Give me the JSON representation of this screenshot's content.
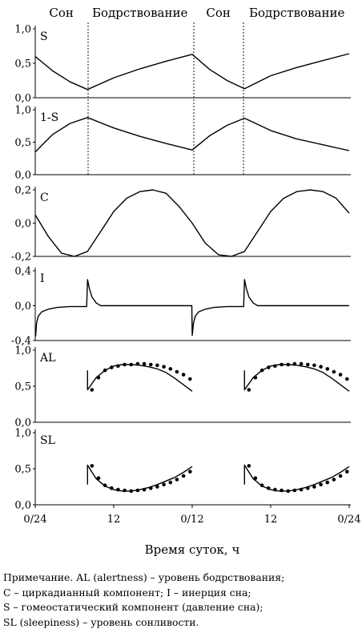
{
  "chart_data": {
    "type": "line",
    "xlabel": "Время суток, ч",
    "x_ticks": [
      "0/24",
      "12",
      "0/12",
      "12",
      "0/24"
    ],
    "phases": [
      {
        "label": "Сон",
        "from": 0,
        "to": 12
      },
      {
        "label": "Бодрствование",
        "from": 12,
        "to": 36
      },
      {
        "label": "Сон",
        "from": 36,
        "to": 48
      },
      {
        "label": "Бодрствование",
        "from": 48,
        "to": 72
      }
    ],
    "xlim": [
      0,
      72
    ],
    "panels": [
      {
        "label": "S",
        "ylim": [
          0,
          1
        ],
        "yticks": [
          "0,0",
          "0,5",
          "1,0"
        ],
        "series": [
          {
            "x": [
              0,
              4,
              8,
              12,
              18,
              24,
              30,
              36,
              40,
              44,
              48,
              54,
              60,
              66,
              72
            ],
            "y": [
              0.6,
              0.39,
              0.23,
              0.12,
              0.29,
              0.42,
              0.53,
              0.63,
              0.41,
              0.25,
              0.13,
              0.32,
              0.44,
              0.54,
              0.64
            ]
          }
        ]
      },
      {
        "label": "1-S",
        "ylim": [
          0,
          1
        ],
        "yticks": [
          "0,0",
          "0,5",
          "1,0"
        ],
        "series": [
          {
            "x": [
              0,
              4,
              8,
              12,
              18,
              24,
              30,
              36,
              40,
              44,
              48,
              54,
              60,
              66,
              72
            ],
            "y": [
              0.35,
              0.62,
              0.79,
              0.88,
              0.72,
              0.59,
              0.48,
              0.38,
              0.6,
              0.76,
              0.87,
              0.68,
              0.55,
              0.46,
              0.37
            ]
          }
        ]
      },
      {
        "label": "C",
        "ylim": [
          -0.2,
          0.2
        ],
        "yticks": [
          "-0,2",
          "0,0",
          "0,2"
        ],
        "series": [
          {
            "x": [
              0,
              3,
              6,
              9,
              12,
              15,
              18,
              21,
              24,
              27,
              30,
              33,
              36,
              39,
              42,
              45,
              48,
              51,
              54,
              57,
              60,
              63,
              66,
              69,
              72
            ],
            "y": [
              0.05,
              -0.08,
              -0.18,
              -0.2,
              -0.17,
              -0.05,
              0.07,
              0.15,
              0.19,
              0.2,
              0.18,
              0.1,
              0.0,
              -0.12,
              -0.19,
              -0.2,
              -0.17,
              -0.05,
              0.07,
              0.15,
              0.19,
              0.2,
              0.19,
              0.15,
              0.06
            ]
          }
        ]
      },
      {
        "label": "I",
        "ylim": [
          -0.4,
          0.4
        ],
        "yticks": [
          "-0,4",
          "0,0",
          "0,4"
        ],
        "series": [
          {
            "x": [
              0.1,
              0.3,
              0.7,
              1.5,
              3,
              5,
              8,
              11.8,
              12,
              12.4,
              13,
              14,
              15,
              18,
              24,
              30,
              35.9,
              36,
              36.3,
              36.7,
              37.5,
              39,
              41,
              44,
              47.8,
              48,
              48.4,
              49,
              50,
              51,
              54,
              60,
              66,
              72
            ],
            "y": [
              -0.35,
              -0.2,
              -0.12,
              -0.07,
              -0.04,
              -0.02,
              -0.01,
              -0.01,
              0.3,
              0.2,
              0.1,
              0.03,
              0.0,
              0.0,
              0.0,
              0.0,
              0.0,
              -0.34,
              -0.2,
              -0.12,
              -0.07,
              -0.04,
              -0.02,
              -0.01,
              -0.01,
              0.3,
              0.2,
              0.1,
              0.03,
              0.0,
              0.0,
              0.0,
              0.0,
              0.0
            ]
          }
        ]
      },
      {
        "label": "AL",
        "ylim": [
          0,
          1
        ],
        "yticks": [
          "0,0",
          "0,5",
          "1,0"
        ],
        "series": [
          {
            "name": "",
            "x": [
              12,
              12,
              14,
              16,
              18,
              20,
              22,
              24,
              26,
              28,
              30,
              32,
              34,
              36
            ],
            "y": [
              0.72,
              0.45,
              0.62,
              0.72,
              0.78,
              0.8,
              0.8,
              0.79,
              0.77,
              0.74,
              0.69,
              0.61,
              0.52,
              0.43
            ]
          },
          {
            "name": "",
            "x": [
              48,
              48,
              50,
              52,
              54,
              56,
              58,
              60,
              62,
              64,
              66,
              68,
              70,
              72
            ],
            "y": [
              0.72,
              0.45,
              0.62,
              0.72,
              0.78,
              0.8,
              0.8,
              0.79,
              0.77,
              0.74,
              0.69,
              0.61,
              0.52,
              0.43
            ]
          }
        ],
        "points": {
          "x": [
            13,
            14.5,
            16,
            17.5,
            19,
            20.5,
            22,
            23.5,
            25,
            26.5,
            28,
            29.5,
            31,
            32.5,
            34,
            35.5,
            49,
            50.5,
            52,
            53.5,
            55,
            56.5,
            58,
            59.5,
            61,
            62.5,
            64,
            65.5,
            67,
            68.5,
            70,
            71.5
          ],
          "y": [
            0.45,
            0.62,
            0.72,
            0.76,
            0.78,
            0.8,
            0.8,
            0.81,
            0.81,
            0.8,
            0.79,
            0.77,
            0.74,
            0.7,
            0.66,
            0.6,
            0.45,
            0.62,
            0.72,
            0.76,
            0.78,
            0.8,
            0.8,
            0.81,
            0.81,
            0.8,
            0.79,
            0.77,
            0.74,
            0.7,
            0.66,
            0.6
          ]
        }
      },
      {
        "label": "SL",
        "ylim": [
          0,
          1
        ],
        "yticks": [
          "0,0",
          "0,5",
          "1,0"
        ],
        "series": [
          {
            "name": "",
            "x": [
              12,
              12,
              14,
              16,
              18,
              20,
              22,
              24,
              26,
              28,
              30,
              32,
              34,
              36
            ],
            "y": [
              0.28,
              0.55,
              0.36,
              0.26,
              0.21,
              0.19,
              0.19,
              0.21,
              0.24,
              0.28,
              0.33,
              0.38,
              0.45,
              0.53
            ]
          },
          {
            "name": "",
            "x": [
              48,
              48,
              50,
              52,
              54,
              56,
              58,
              60,
              62,
              64,
              66,
              68,
              70,
              72
            ],
            "y": [
              0.28,
              0.55,
              0.36,
              0.26,
              0.21,
              0.19,
              0.19,
              0.21,
              0.24,
              0.28,
              0.33,
              0.38,
              0.45,
              0.53
            ]
          }
        ],
        "points": {
          "x": [
            13,
            14.5,
            16,
            17.5,
            19,
            20.5,
            22,
            23.5,
            25,
            26.5,
            28,
            29.5,
            31,
            32.5,
            34,
            35.5,
            49,
            50.5,
            52,
            53.5,
            55,
            56.5,
            58,
            59.5,
            61,
            62.5,
            64,
            65.5,
            67,
            68.5,
            70,
            71.5
          ],
          "y": [
            0.54,
            0.37,
            0.27,
            0.23,
            0.21,
            0.2,
            0.19,
            0.2,
            0.21,
            0.23,
            0.25,
            0.28,
            0.31,
            0.35,
            0.4,
            0.46,
            0.54,
            0.37,
            0.27,
            0.23,
            0.21,
            0.2,
            0.19,
            0.2,
            0.21,
            0.23,
            0.25,
            0.28,
            0.31,
            0.35,
            0.4,
            0.46
          ]
        }
      }
    ]
  },
  "note": {
    "lines": [
      "Примечание. AL (alertness) – уровень бодрствования;",
      "C – циркадианный компонент; I – инерция сна;",
      "S – гомеостатический компонент (давление сна);",
      "SL (sleepiness) – уровень сонливости."
    ]
  }
}
